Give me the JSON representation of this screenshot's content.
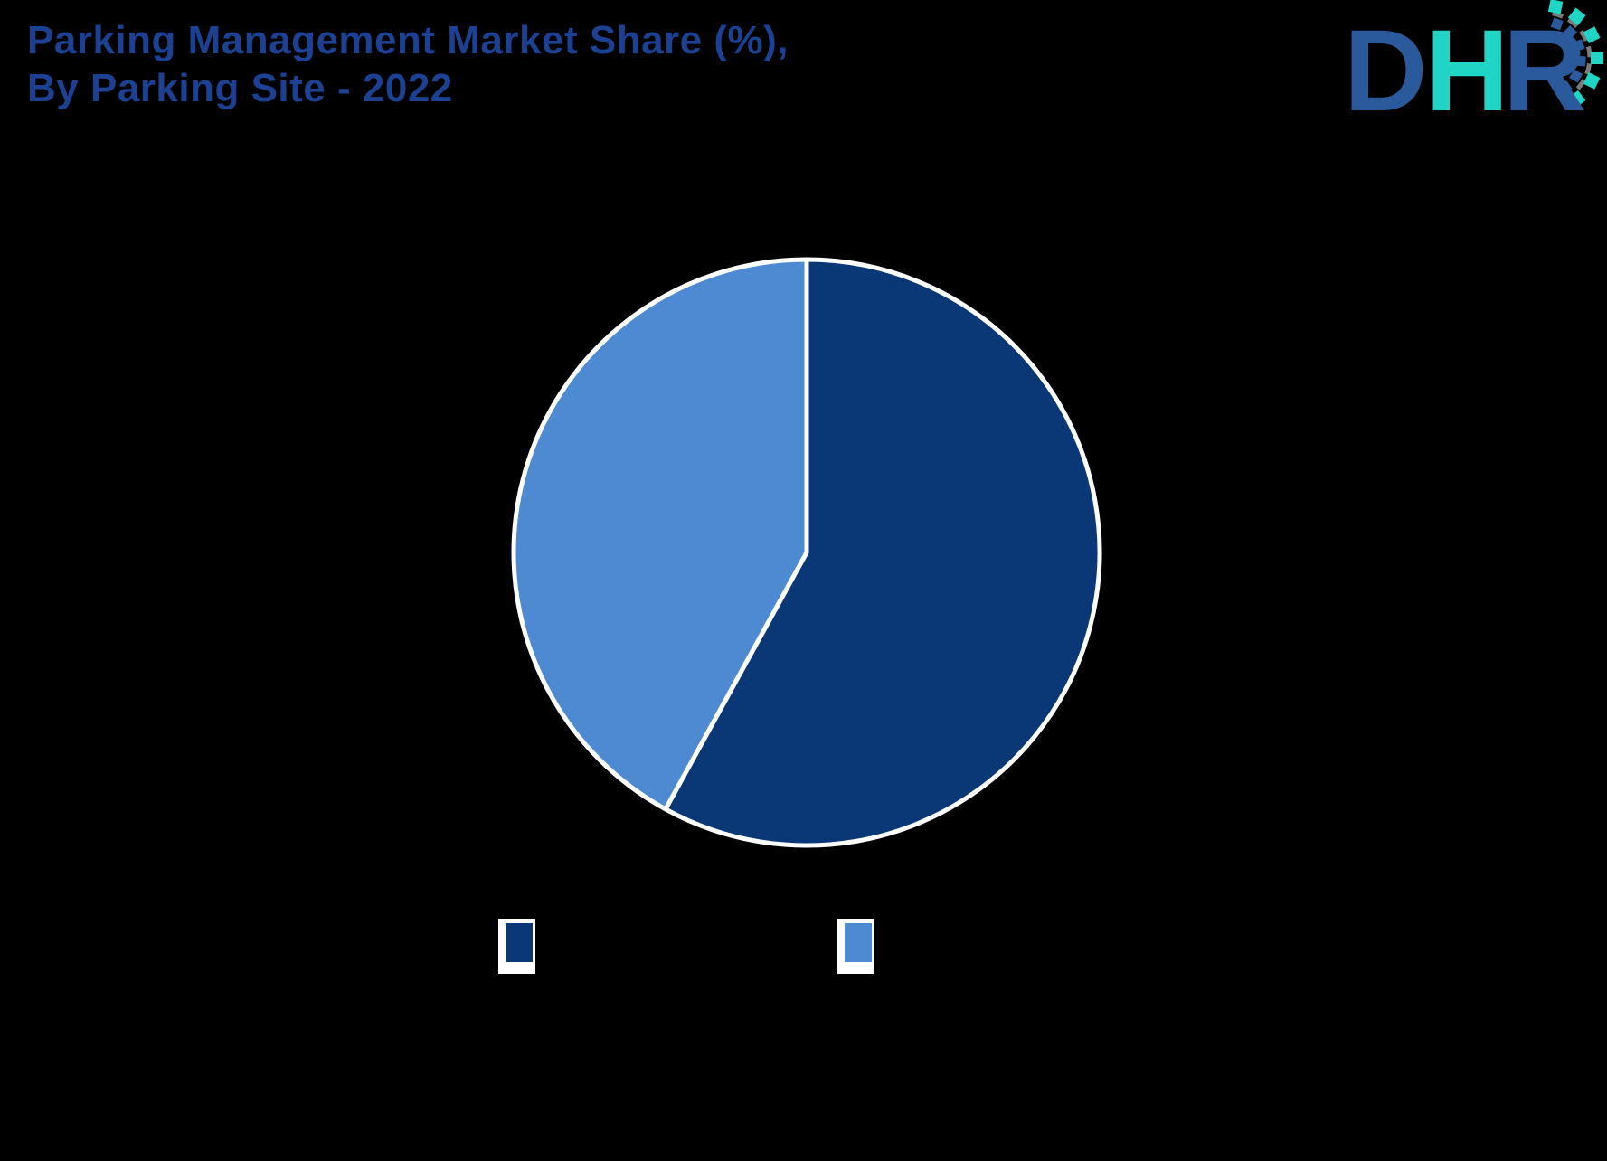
{
  "page": {
    "background": "#000000"
  },
  "header": {
    "title_line1": "Parking Management Market Share (%),",
    "title_line2": "By Parking Site - 2022",
    "title_color": "#1c4192"
  },
  "logo": {
    "letters": [
      {
        "char": "D",
        "color": "#2b5a9c"
      },
      {
        "char": "H",
        "color": "#20d5c6"
      },
      {
        "char": "R",
        "color": "#2b5a9c"
      }
    ],
    "dot_colors": {
      "inner": "#2b5a9c",
      "outer": "#20d5c6"
    },
    "ring_color": "#8c9091"
  },
  "chart_data": {
    "type": "pie",
    "title": "Parking Management Market Share (%), By Parking Site - 2022",
    "segments": [
      {
        "name": "segment-1-dark-navy",
        "value": 58,
        "color": "#0a3877"
      },
      {
        "name": "segment-2-light-blue",
        "value": 42,
        "color": "#4e8ad2"
      }
    ],
    "start_angle_deg": 0,
    "direction": "clockwise",
    "slice_stroke_color": "#ffffff",
    "data_labels_visible": false,
    "legend": {
      "position": "bottom",
      "labels_visible": false,
      "swatch_background": "#ffffff"
    }
  }
}
